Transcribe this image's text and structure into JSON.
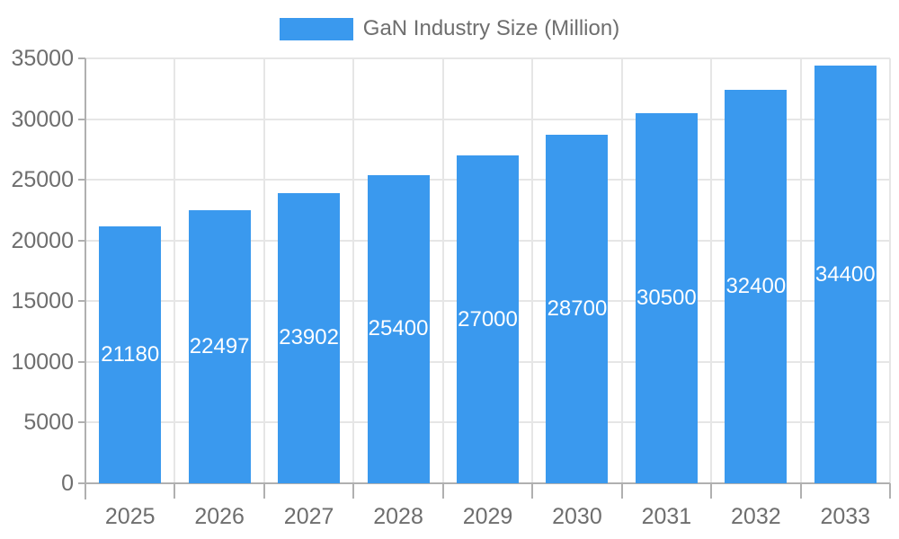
{
  "chart_data": {
    "type": "bar",
    "title": "",
    "legend": "GaN Industry Size (Million)",
    "legend_position": "top",
    "categories": [
      "2025",
      "2026",
      "2027",
      "2028",
      "2029",
      "2030",
      "2031",
      "2032",
      "2033"
    ],
    "series": [
      {
        "name": "GaN Industry Size (Million)",
        "values": [
          21180,
          22497,
          23902,
          25400,
          27000,
          28700,
          30500,
          32400,
          34400
        ]
      }
    ],
    "xlabel": "",
    "ylabel": "",
    "ylim": [
      0,
      35000
    ],
    "ytick_step": 5000,
    "yticks": [
      0,
      5000,
      10000,
      15000,
      20000,
      25000,
      30000,
      35000
    ],
    "grid": true,
    "value_labels": "inside-center",
    "colors": {
      "bar": "#3a99ee",
      "grid": "#e6e6e6",
      "axis": "#b0b0b0",
      "tick_text": "#6e6e6e",
      "legend_text": "#6e6e6e",
      "value_label": "#ffffff",
      "background": "#ffffff"
    }
  }
}
